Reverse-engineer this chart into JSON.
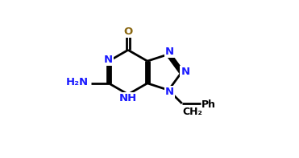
{
  "bg_color": "#ffffff",
  "bond_color": "#000000",
  "atom_color": "#b8860b",
  "N_color": "#1a1aff",
  "O_color": "#cc0000",
  "lw": 2.0,
  "figsize": [
    3.71,
    1.97
  ],
  "dpi": 100,
  "xlim": [
    0.05,
    0.95
  ],
  "ylim": [
    0.05,
    0.95
  ]
}
